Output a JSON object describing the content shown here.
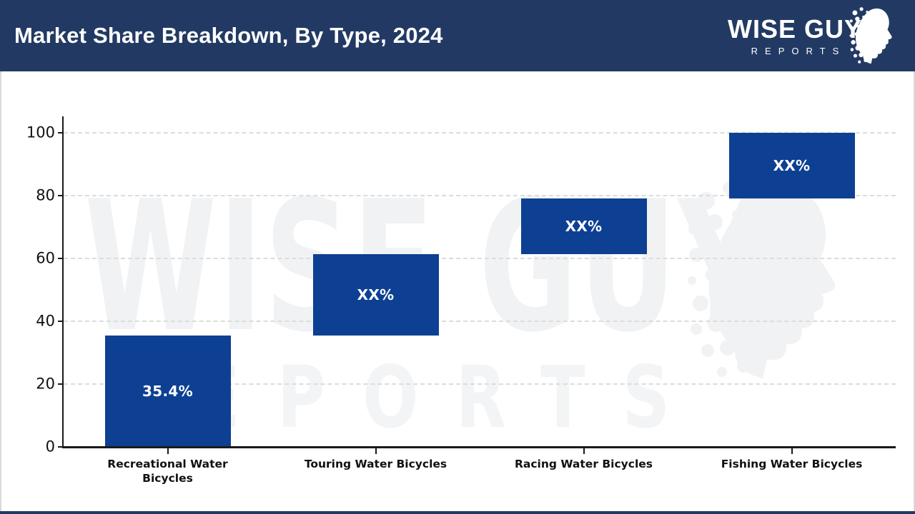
{
  "header": {
    "title": "Market Share Breakdown, By Type, 2024",
    "logo_primary": "WISE GUY",
    "logo_secondary": "REPORTS",
    "background_color": "#223a63",
    "text_color": "#ffffff"
  },
  "watermark": {
    "line1": "WISE GUY",
    "line2": "REPORTS",
    "color": "#f1f2f4"
  },
  "footer": {
    "background_color": "#223a63"
  },
  "chart_data": {
    "type": "bar",
    "subtype": "waterfall",
    "title": "Market Share Breakdown, By Type, 2024",
    "xlabel": "",
    "ylabel": "",
    "categories": [
      "Recreational Water Bicycles",
      "Touring Water Bicycles",
      "Racing Water Bicycles",
      "Fishing Water Bicycles"
    ],
    "segments": [
      {
        "category": "Recreational Water Bicycles",
        "start": 0,
        "end": 35.4,
        "label": "35.4%"
      },
      {
        "category": "Touring Water Bicycles",
        "start": 35.4,
        "end": 61.4,
        "label": "XX%"
      },
      {
        "category": "Racing Water Bicycles",
        "start": 61.4,
        "end": 79.1,
        "label": "XX%"
      },
      {
        "category": "Fishing Water Bicycles",
        "start": 79.1,
        "end": 100,
        "label": "XX%"
      }
    ],
    "yticks": [
      0,
      20,
      40,
      60,
      80,
      100
    ],
    "ylim": [
      0,
      105
    ],
    "grid": "horizontal dashed, behind bars",
    "legend": "none",
    "bar_color": "#0d4092",
    "bar_label_color": "#ffffff",
    "axis_color": "#1a1a1a",
    "grid_color": "#dcdcdc",
    "tick_label_color": "#111111"
  }
}
